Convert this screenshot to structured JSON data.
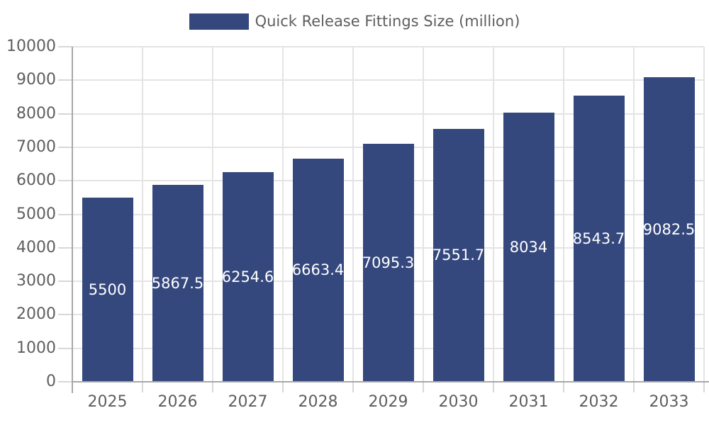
{
  "chart_data": {
    "type": "bar",
    "title": "Quick Release Fittings Size (million)",
    "legend": [
      "Quick Release Fittings Size (million)"
    ],
    "legend_position": "top-center",
    "categories": [
      "2025",
      "2026",
      "2027",
      "2028",
      "2029",
      "2030",
      "2031",
      "2032",
      "2033"
    ],
    "values": [
      5500,
      5867.5,
      6254.6,
      6663.4,
      7095.3,
      7551.7,
      8034,
      8543.7,
      9082.5
    ],
    "value_labels": [
      "5500",
      "5867.5",
      "6254.6",
      "6663.4",
      "7095.3",
      "7551.7",
      "8034",
      "8543.7",
      "9082.5"
    ],
    "xlabel": "",
    "ylabel": "",
    "ylim": [
      0,
      10000
    ],
    "ytick_step": 1000,
    "ytick_labels": [
      "0",
      "1000",
      "2000",
      "3000",
      "4000",
      "5000",
      "6000",
      "7000",
      "8000",
      "9000",
      "10000"
    ],
    "grid": true,
    "colors": {
      "bar": "#35487d",
      "axis_text": "#5e5e5e",
      "legend_text": "#5e5e5e",
      "gridline": "#e4e4e4",
      "tick": "#d8d8d8",
      "axis_line": "#a8a8a8",
      "bar_value_text": "#ffffff",
      "background": "#ffffff"
    }
  }
}
